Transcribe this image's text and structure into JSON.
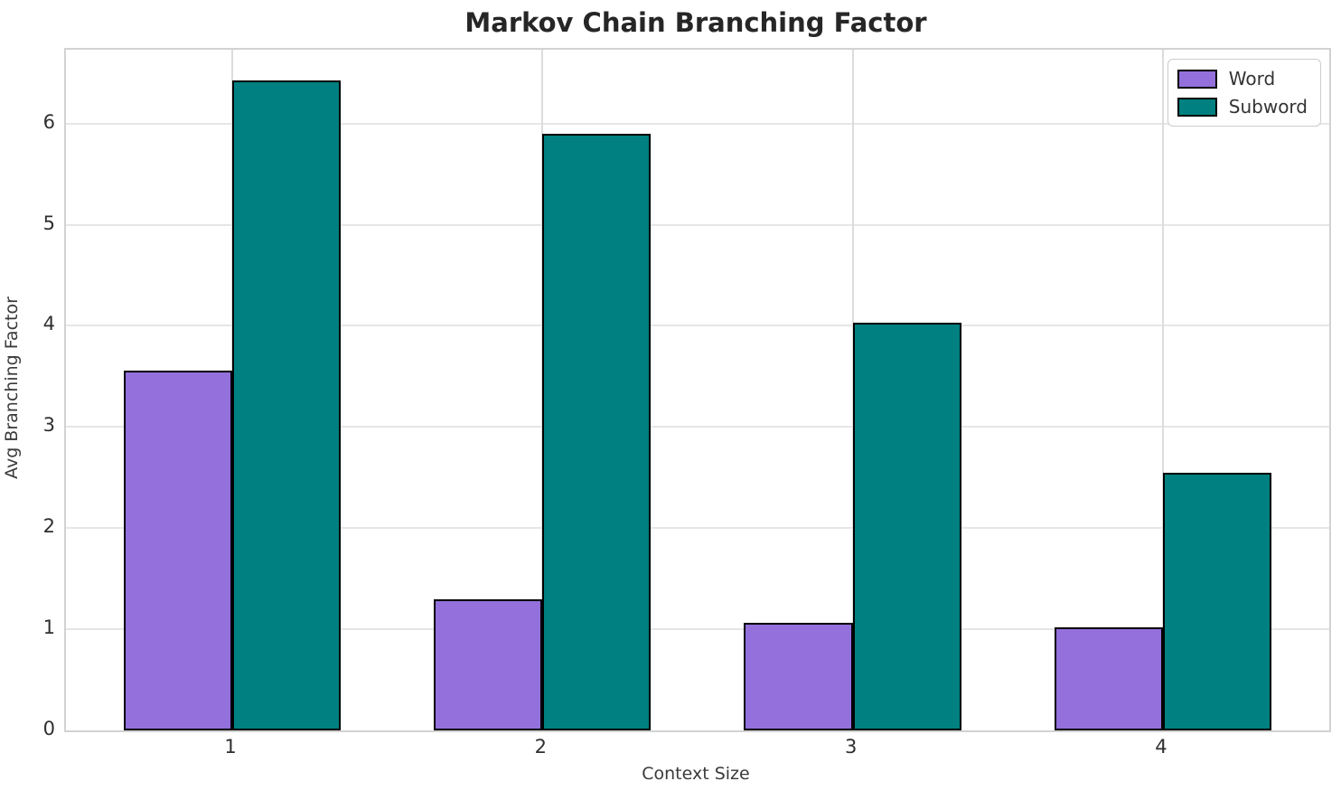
{
  "chart_data": {
    "type": "bar",
    "title": "Markov Chain Branching Factor",
    "xlabel": "Context Size",
    "ylabel": "Avg Branching Factor",
    "categories": [
      "1",
      "2",
      "3",
      "4"
    ],
    "series": [
      {
        "name": "Word",
        "color": "#9370DB",
        "values": [
          3.56,
          1.3,
          1.06,
          1.02
        ]
      },
      {
        "name": "Subword",
        "color": "#008080",
        "values": [
          6.43,
          5.9,
          4.03,
          2.55
        ]
      }
    ],
    "ylim": [
      0,
      6.73
    ],
    "yticks": [
      0,
      1,
      2,
      3,
      4,
      5,
      6
    ],
    "grid": true,
    "legend_position": "upper right",
    "bar_edge_color": "#000000",
    "bar_width_units": 0.35,
    "category_pad_units": 0.536
  }
}
